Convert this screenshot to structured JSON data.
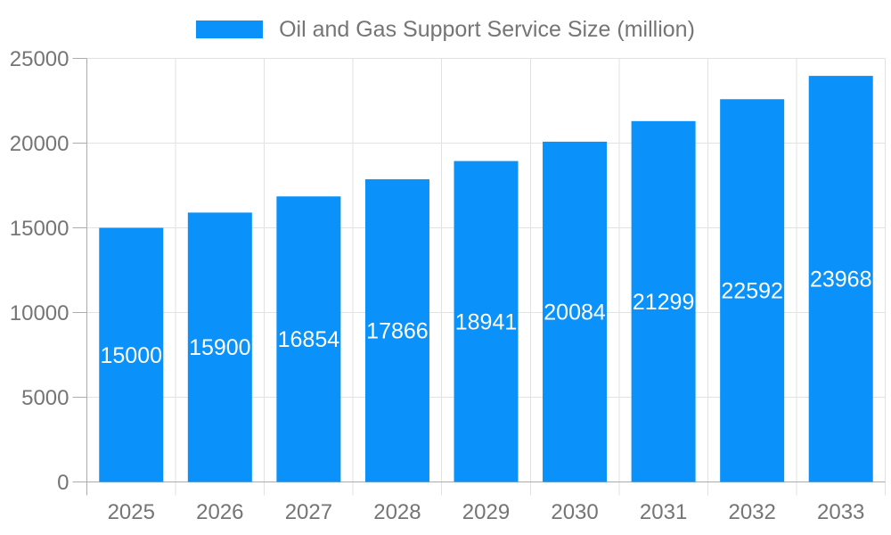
{
  "legend": {
    "label": "Oil and Gas Support Service Size (million)"
  },
  "chart_data": {
    "type": "bar",
    "title": "Oil and Gas Support Service Size (million)",
    "categories": [
      "2025",
      "2026",
      "2027",
      "2028",
      "2029",
      "2030",
      "2031",
      "2032",
      "2033"
    ],
    "values": [
      15000,
      15900,
      16854,
      17866,
      18941,
      20084,
      21299,
      22592,
      23968
    ],
    "value_labels": [
      "15000",
      "15900",
      "16854",
      "17866",
      "18941",
      "20084",
      "21299",
      "22592",
      "23968"
    ],
    "xlabel": "",
    "ylabel": "",
    "ylim": [
      0,
      25000
    ],
    "ytick_step": 5000,
    "ytick_labels": [
      "0",
      "5000",
      "10000",
      "15000",
      "20000",
      "25000"
    ],
    "grid": true,
    "legend_position": "top"
  },
  "colors": {
    "bar": "#0A91FA",
    "grid": "#E2E2E2",
    "axis": "#ACACAC",
    "tick_text": "#757575",
    "value_label": "#FFFFFF",
    "background": "#FFFFFF"
  }
}
